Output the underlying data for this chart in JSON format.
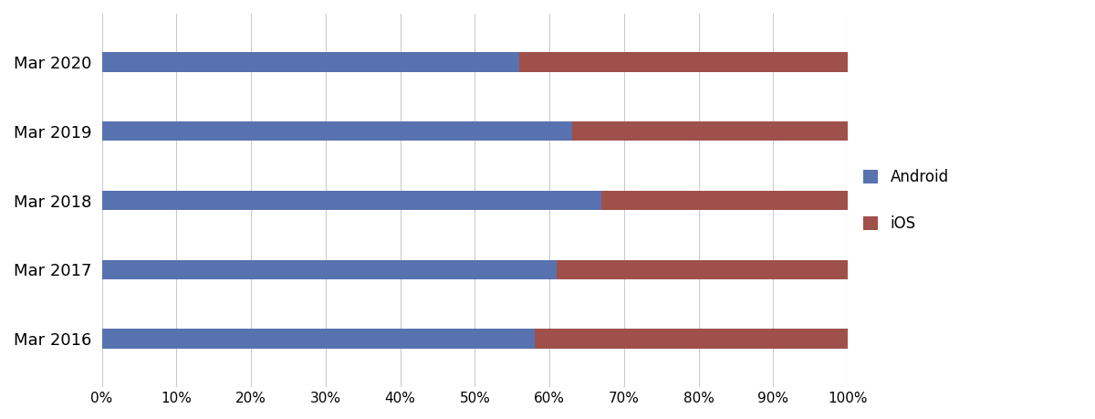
{
  "categories": [
    "Mar 2016",
    "Mar 2017",
    "Mar 2018",
    "Mar 2019",
    "Mar 2020"
  ],
  "android": [
    58,
    61,
    67,
    63,
    56
  ],
  "ios": [
    42,
    39,
    33,
    37,
    44
  ],
  "android_color": "#5872b0",
  "ios_color": "#a0504a",
  "legend_labels": [
    "Android",
    "iOS"
  ],
  "background_color": "#ffffff",
  "grid_color": "#cccccc",
  "xlim": [
    0,
    100
  ],
  "xtick_values": [
    0,
    10,
    20,
    30,
    40,
    50,
    60,
    70,
    80,
    90,
    100
  ],
  "bar_height": 0.28,
  "ytick_fontsize": 13,
  "xtick_fontsize": 11
}
